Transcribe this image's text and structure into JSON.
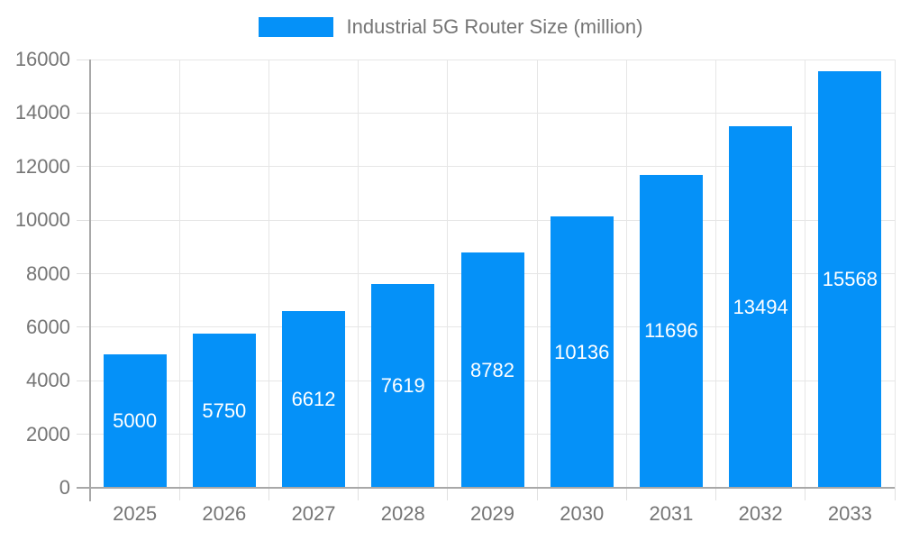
{
  "chart_data": {
    "type": "bar",
    "title": "Industrial 5G Router Size (million)",
    "categories": [
      "2025",
      "2026",
      "2027",
      "2028",
      "2029",
      "2030",
      "2031",
      "2032",
      "2033"
    ],
    "values": [
      5000,
      5750,
      6612,
      7619,
      8782,
      10136,
      11696,
      13494,
      15568
    ],
    "series_name": "Industrial 5G Router Size (million)",
    "xlabel": "",
    "ylabel": "",
    "ylim": [
      0,
      16000
    ],
    "yticks": [
      0,
      2000,
      4000,
      6000,
      8000,
      10000,
      12000,
      14000,
      16000
    ],
    "grid": true,
    "legend_position": "top-center",
    "value_labels": "inside-center",
    "colors": {
      "bar": "#0591f8",
      "value_label": "#ffffff",
      "axis_text": "#757575",
      "legend_text": "#757575",
      "gridline": "#e6e6e6",
      "tick": "#e0e0e0",
      "axis_line": "#a8a8a8"
    }
  }
}
